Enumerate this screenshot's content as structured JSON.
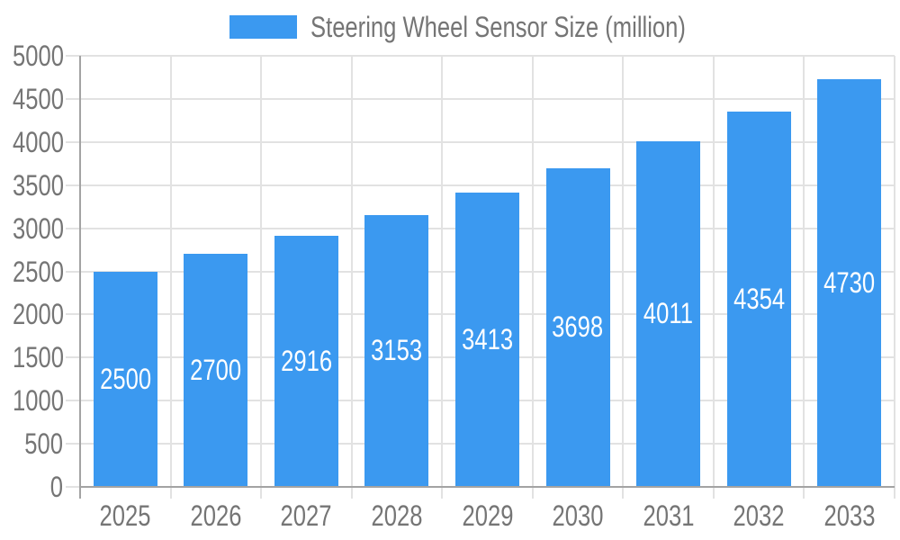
{
  "chart_data": {
    "type": "bar",
    "title": "Steering Wheel Sensor Size (million)",
    "legend": {
      "label": "Steering Wheel Sensor Size (million)",
      "position": "top"
    },
    "categories": [
      "2025",
      "2026",
      "2027",
      "2028",
      "2029",
      "2030",
      "2031",
      "2032",
      "2033"
    ],
    "values": [
      2500,
      2700,
      2916,
      3153,
      3413,
      3698,
      4011,
      4354,
      4730
    ],
    "xlabel": "",
    "ylabel": "",
    "ylim": [
      0,
      5000
    ],
    "yticks": [
      0,
      500,
      1000,
      1500,
      2000,
      2500,
      3000,
      3500,
      4000,
      4500,
      5000
    ],
    "grid": true,
    "value_labels": "inside-center-white"
  },
  "colors": {
    "bar": "#3B99F0",
    "grid": "#E2E2E2",
    "axis": "#A3A3A3",
    "text": "#757575",
    "bar_label": "#FFFFFF",
    "background": "#FFFFFF"
  }
}
